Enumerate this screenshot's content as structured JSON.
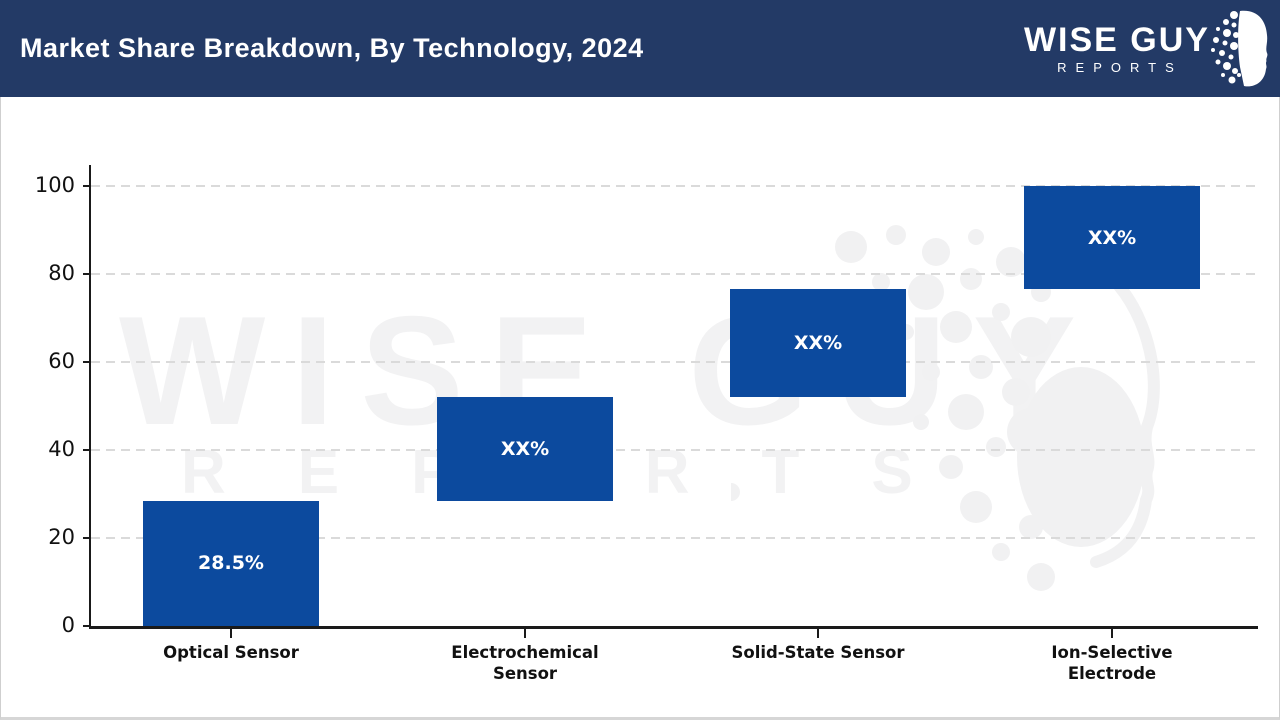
{
  "header": {
    "title": "Market Share Breakdown, By Technology, 2024",
    "logo": {
      "line1": "WISE GUY",
      "line2": "REPORTS"
    }
  },
  "watermark": {
    "line1": "WISE GUY",
    "line2": "REPORTS"
  },
  "chart_data": {
    "type": "bar",
    "subtype": "waterfall-breakdown",
    "title": "Market Share Breakdown, By Technology, 2024",
    "categories": [
      "Optical Sensor",
      "Electrochemical\nSensor",
      "Solid-State Sensor",
      "Ion-Selective\nElectrode"
    ],
    "segments": [
      {
        "category": "Optical Sensor",
        "start": 0,
        "end": 28.5,
        "label": "28.5%"
      },
      {
        "category": "Electrochemical Sensor",
        "start": 28.5,
        "end": 52,
        "label": "XX%"
      },
      {
        "category": "Solid-State Sensor",
        "start": 52,
        "end": 76.5,
        "label": "XX%"
      },
      {
        "category": "Ion-Selective Electrode",
        "start": 76.5,
        "end": 100,
        "label": "XX%"
      }
    ],
    "ylim": [
      0,
      100
    ],
    "yticks": [
      0,
      20,
      40,
      60,
      80,
      100
    ],
    "xlabel": "",
    "ylabel": "",
    "grid": "horizontal dashed",
    "legend": "none",
    "bar_color": "#0c4a9e",
    "bar_label_color": "#ffffff"
  },
  "colors": {
    "header_bg": "#233a66",
    "bar": "#0c4a9e",
    "grid": "#dadada",
    "axis": "#1a1a1a",
    "watermark": "#f2f2f3",
    "canvas_border": "#cfcfcf"
  }
}
